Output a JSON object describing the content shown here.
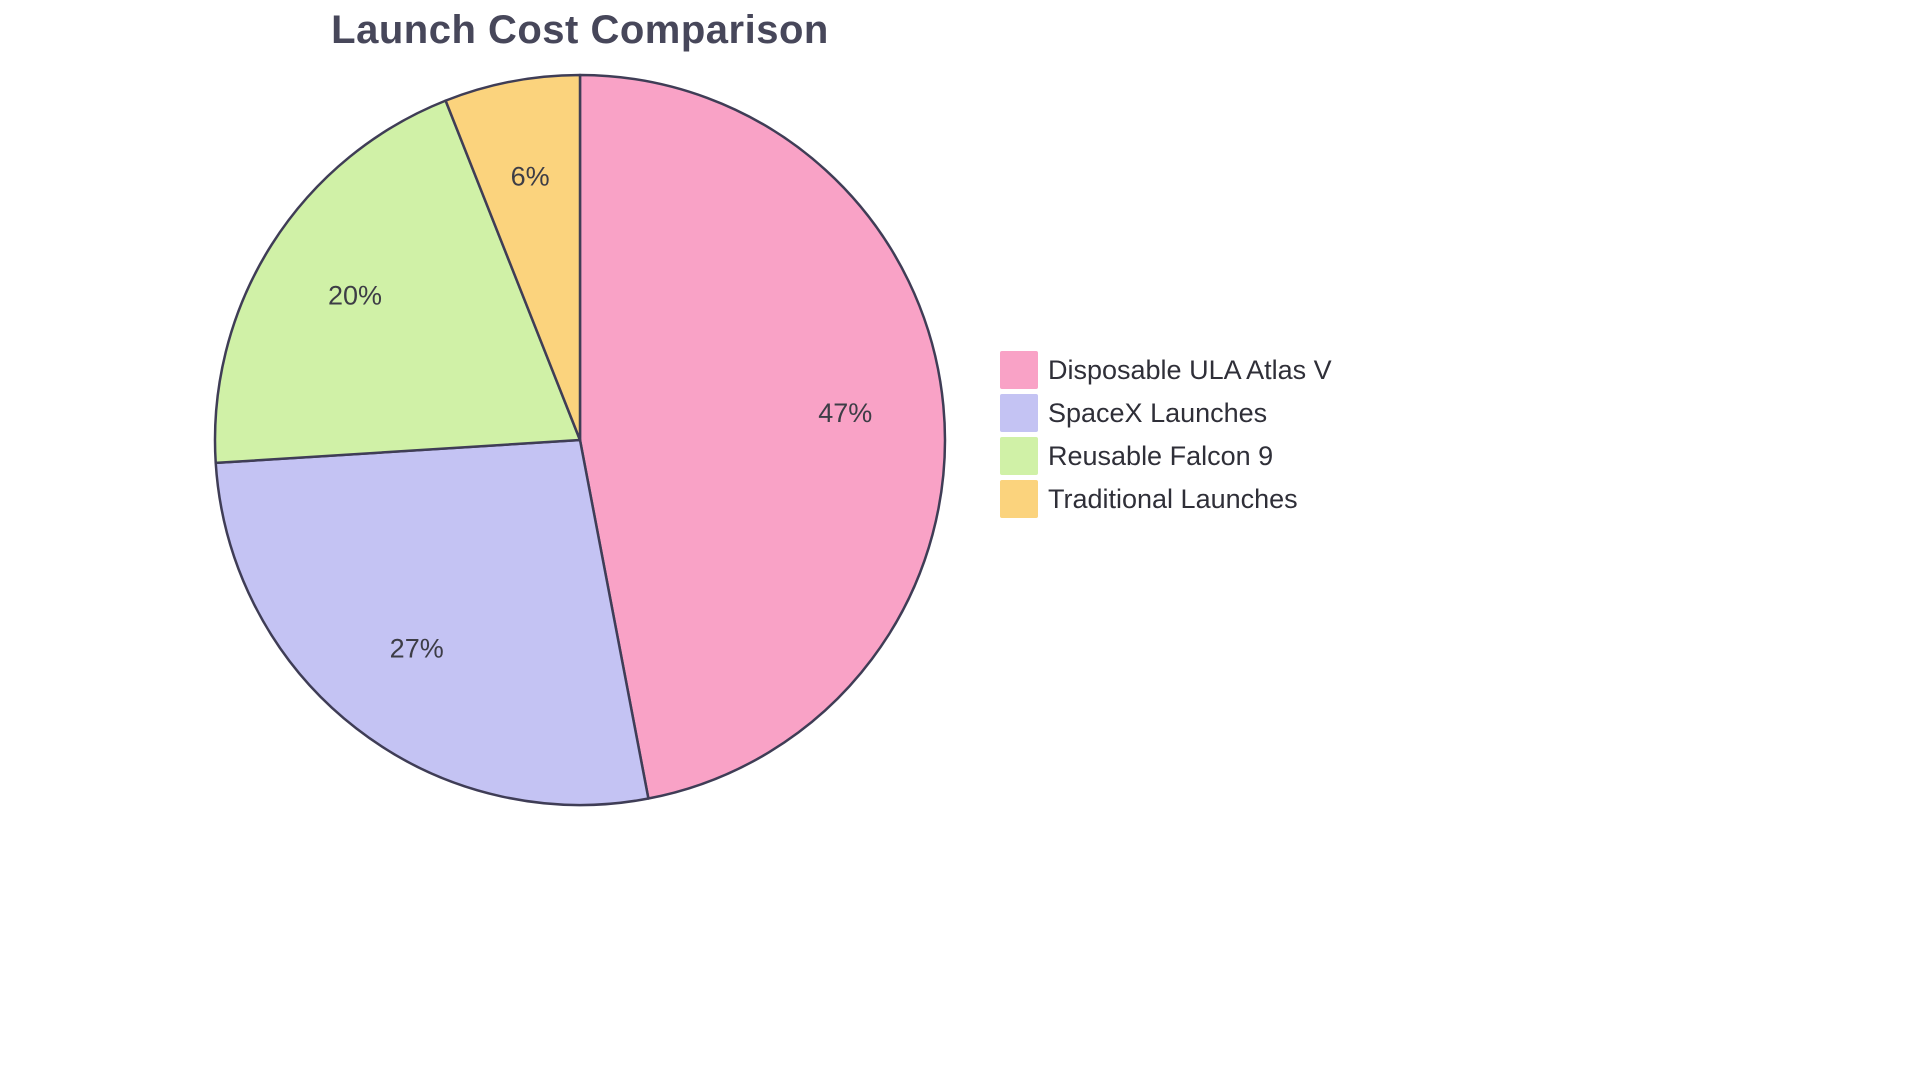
{
  "chart_data": {
    "type": "pie",
    "title": "Launch Cost Comparison",
    "labels": [
      "Disposable ULA Atlas V",
      "SpaceX Launches",
      "Reusable Falcon 9",
      "Traditional Launches"
    ],
    "values": [
      47,
      27,
      20,
      6
    ],
    "slice_labels": [
      "47%",
      "27%",
      "20%",
      "6%"
    ],
    "unit": "%",
    "colors": [
      "#F9A2C6",
      "#C4C3F3",
      "#D0F1A7",
      "#FBD37D"
    ],
    "stroke_color": "#3F3D56",
    "title_color": "#47475A",
    "label_color": "#3D3D46",
    "legend_position": "right",
    "start_angle_deg": 0,
    "direction": "clockwise",
    "background": "#FFFFFF"
  }
}
